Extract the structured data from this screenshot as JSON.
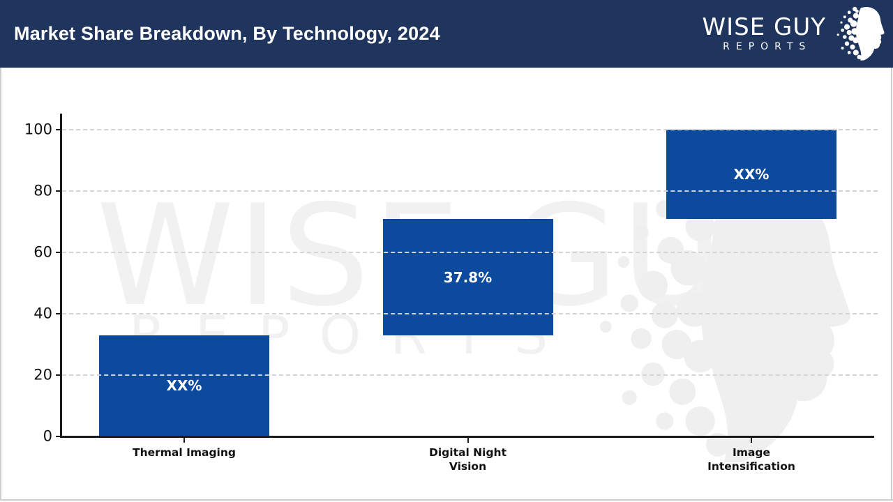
{
  "header": {
    "title": "Market Share Breakdown, By Technology, 2024",
    "brand": {
      "name": "WISE GUY",
      "subtitle": "REPORTS"
    }
  },
  "watermark": {
    "line1": "WISE GUY",
    "line2": "REPORTS"
  },
  "chart_data": {
    "type": "bar",
    "subtype": "floating-segment-bars (waterfall of market share)",
    "title": "Market Share Breakdown, By Technology, 2024",
    "categories": [
      "Thermal Imaging",
      "Digital Night\nVision",
      "Image\nIntensification"
    ],
    "segments": [
      {
        "category": "Thermal Imaging",
        "start": 0,
        "end": 33,
        "label": "XX%"
      },
      {
        "category": "Digital Night Vision",
        "start": 33,
        "end": 70.8,
        "label": "37.8%"
      },
      {
        "category": "Image Intensification",
        "start": 70.8,
        "end": 100,
        "label": "XX%"
      }
    ],
    "yticks": [
      0,
      20,
      40,
      60,
      80,
      100
    ],
    "ylim": [
      0,
      100
    ],
    "xlabel": "",
    "ylabel": "",
    "grid": "horizontal dashed",
    "legend": "none",
    "bar_color": "#0c4a9e",
    "value_label_color": "#ffffff"
  },
  "colors": {
    "header_bg": "#1f355e",
    "bar": "#0c4a9e",
    "grid": "#d4d4d4",
    "axis": "#1a1a1a",
    "watermark": "#f1f1f1",
    "frame_border": "#cdcdcd"
  }
}
